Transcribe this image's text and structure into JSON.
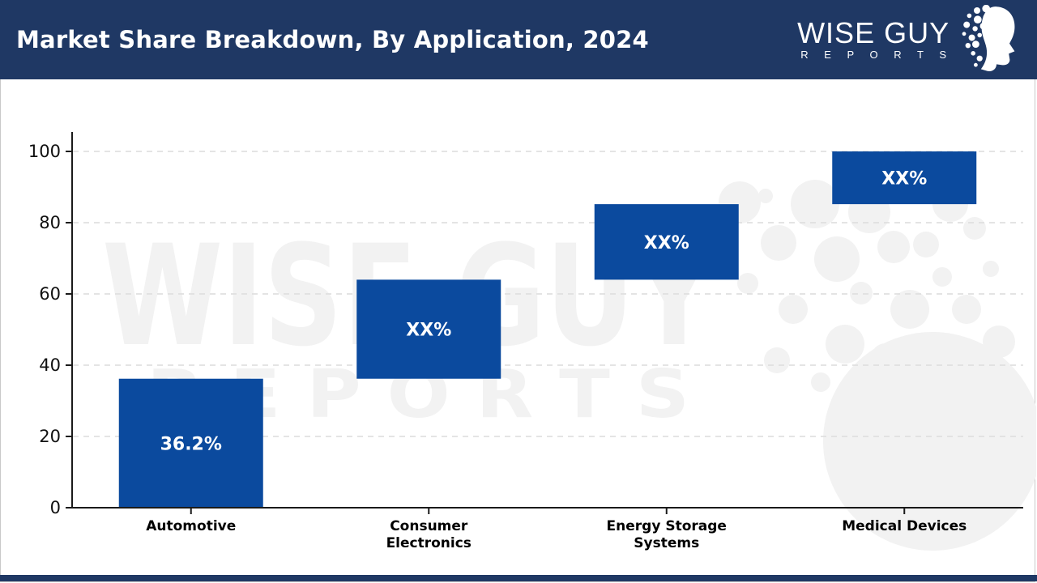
{
  "header": {
    "title": "Market Share Breakdown, By Application, 2024",
    "logo": {
      "line1": "WISE GUY",
      "line2": "R E P O R T S"
    }
  },
  "watermark": {
    "line1": "WISE GUY",
    "line2": "R E P O R T S"
  },
  "colors": {
    "header_bg": "#1f3864",
    "bar": "#0b4a9e",
    "bar_label": "#ffffff",
    "grid": "#dcdcdc",
    "axis": "#1a1a1a",
    "tick_label": "#111111",
    "watermark": "#f2f2f2"
  },
  "chart_data": {
    "type": "bar",
    "variant": "waterfall",
    "title": "Market Share Breakdown, By Application, 2024",
    "categories": [
      "Automotive",
      "Consumer Electronics",
      "Energy Storage Systems",
      "Medical Devices"
    ],
    "category_label_lines": [
      [
        "Automotive"
      ],
      [
        "Consumer",
        "Electronics"
      ],
      [
        "Energy Storage",
        "Systems"
      ],
      [
        "Medical Devices"
      ]
    ],
    "segments": [
      {
        "category": "Automotive",
        "start": 0,
        "end": 36.2,
        "label": "36.2%"
      },
      {
        "category": "Consumer Electronics",
        "start": 36.2,
        "end": 64.0,
        "label": "XX%"
      },
      {
        "category": "Energy Storage Systems",
        "start": 64.0,
        "end": 85.2,
        "label": "XX%"
      },
      {
        "category": "Medical Devices",
        "start": 85.2,
        "end": 100,
        "label": "XX%"
      }
    ],
    "ytick_labels": [
      "0",
      "20",
      "40",
      "60",
      "80",
      "100"
    ],
    "ytick_values": [
      0,
      20,
      40,
      60,
      80,
      100
    ],
    "ylim": [
      0,
      105.5
    ],
    "xlabel": "",
    "ylabel": "",
    "legend": "none",
    "grid": {
      "horizontal": true,
      "style": "dashed"
    }
  }
}
